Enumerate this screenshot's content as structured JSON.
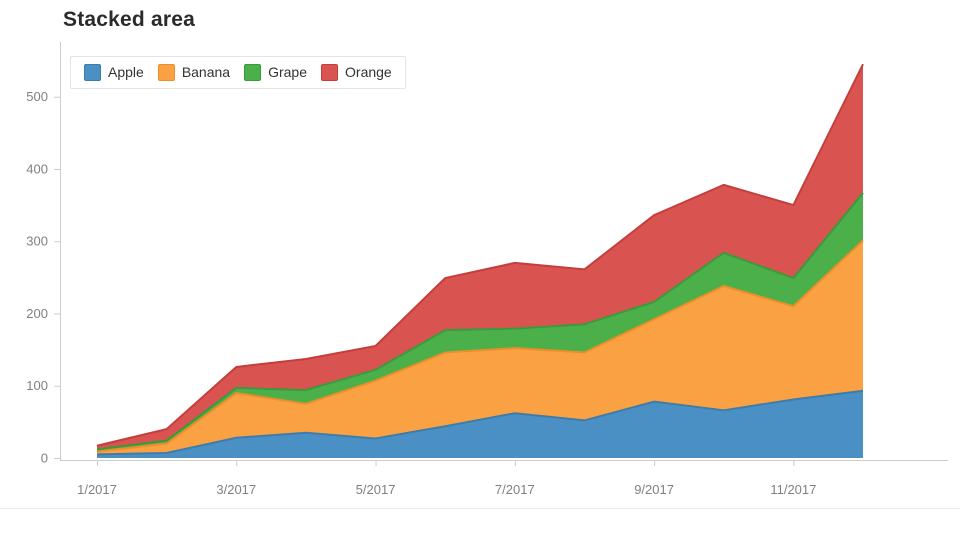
{
  "page": {
    "title": "Stacked area"
  },
  "chart_data": {
    "type": "area",
    "stacked": true,
    "title": "Stacked area",
    "xlabel": "",
    "ylabel": "",
    "grid": false,
    "legend_position": "top-left",
    "categories": [
      "1/2017",
      "2/2017",
      "3/2017",
      "4/2017",
      "5/2017",
      "6/2017",
      "7/2017",
      "8/2017",
      "9/2017",
      "10/2017",
      "11/2017",
      "12/2017"
    ],
    "x_tick_labels": [
      "1/2017",
      "3/2017",
      "5/2017",
      "7/2017",
      "9/2017",
      "11/2017"
    ],
    "x_tick_month_indices": [
      0,
      2,
      4,
      6,
      8,
      10
    ],
    "yticks": [
      0,
      100,
      200,
      300,
      400,
      500
    ],
    "ylim": [
      0,
      560
    ],
    "series": [
      {
        "name": "Apple",
        "fill": "#4a90c4",
        "stroke": "#3d7cab",
        "values": [
          5,
          7,
          28,
          35,
          27,
          44,
          62,
          52,
          78,
          66,
          81,
          93
        ]
      },
      {
        "name": "Banana",
        "fill": "#faa144",
        "stroke": "#ef8d28",
        "values": [
          4,
          13,
          62,
          40,
          80,
          102,
          90,
          94,
          114,
          172,
          129,
          208
        ]
      },
      {
        "name": "Grape",
        "fill": "#4cb04a",
        "stroke": "#3b9a3e",
        "values": [
          3,
          4,
          7,
          19,
          15,
          31,
          27,
          39,
          24,
          46,
          39,
          66
        ]
      },
      {
        "name": "Orange",
        "fill": "#d95450",
        "stroke": "#c43f3c",
        "values": [
          5,
          16,
          29,
          43,
          33,
          72,
          91,
          76,
          120,
          94,
          101,
          178
        ]
      }
    ],
    "axis_color": "#cccccc",
    "tick_label_color": "#808080"
  }
}
